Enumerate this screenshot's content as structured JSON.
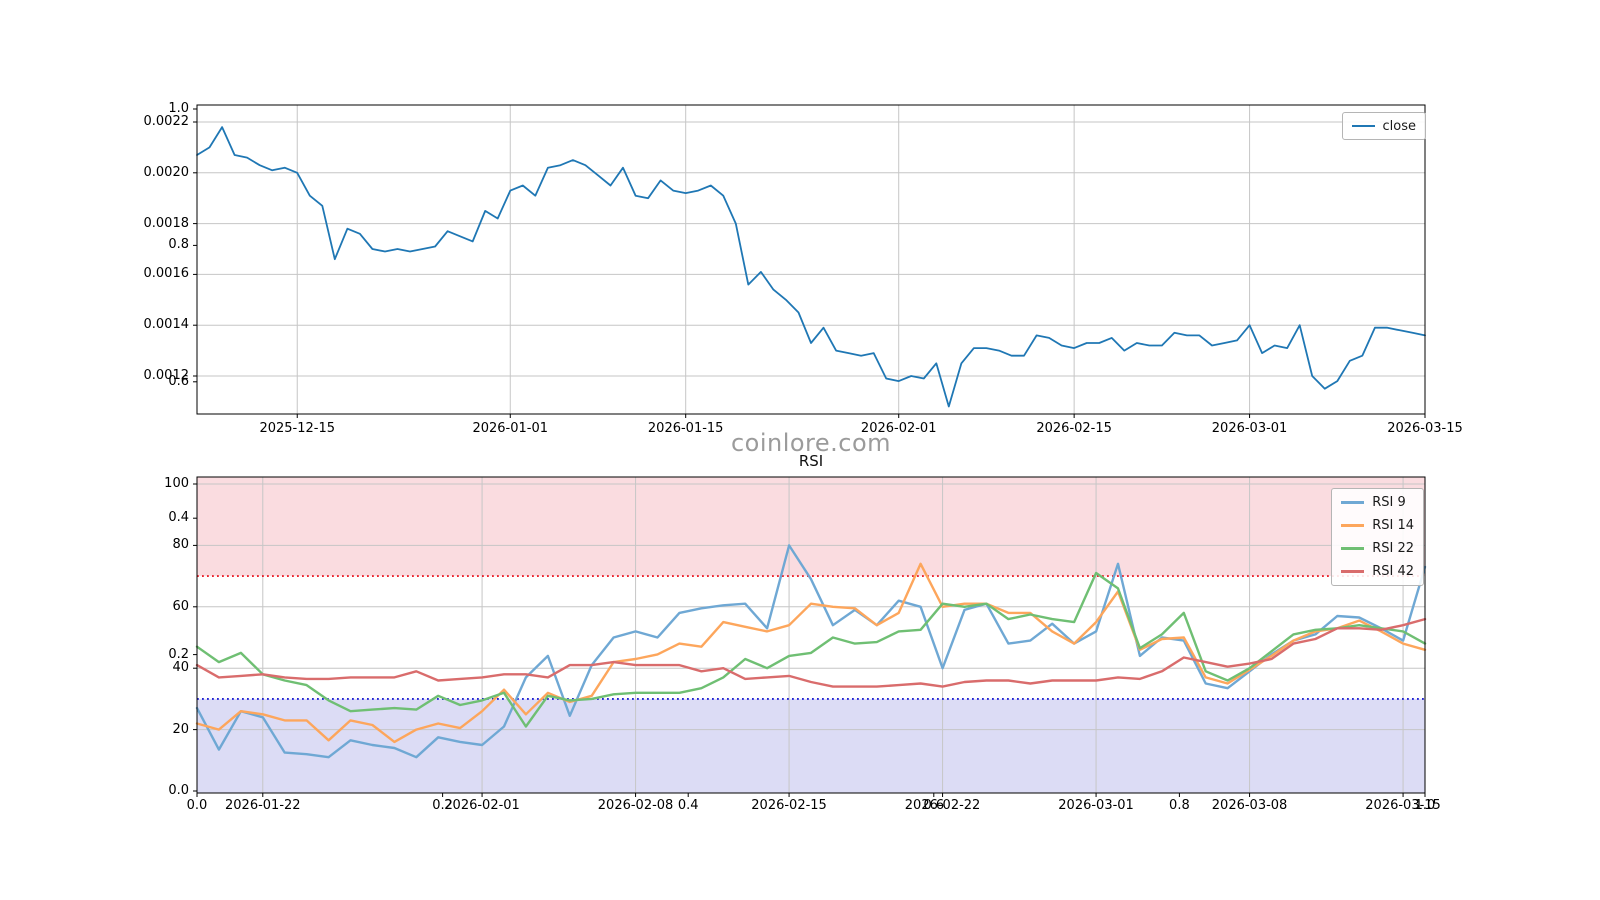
{
  "watermark": "coinlore.com",
  "overlay_axis": {
    "y_labels": [
      "1.0",
      "0.8",
      "0.6",
      "0.4",
      "0.2",
      "0.0"
    ],
    "x_labels": [
      "0.0",
      "0.2",
      "0.4",
      "0.6",
      "0.8",
      "1.0"
    ]
  },
  "chart_data": [
    {
      "type": "line",
      "title": "",
      "legend_position": "upper right",
      "grid": true,
      "ylim": [
        0.00105,
        0.00227
      ],
      "y_ticks": [
        {
          "label": "0.0022",
          "value": 0.0022
        },
        {
          "label": "0.0020",
          "value": 0.002
        },
        {
          "label": "0.0018",
          "value": 0.0018
        },
        {
          "label": "0.0016",
          "value": 0.0016
        },
        {
          "label": "0.0014",
          "value": 0.0014
        },
        {
          "label": "0.0012",
          "value": 0.0012
        }
      ],
      "x_ticks": [
        {
          "label": "2025-12-15",
          "index": 8
        },
        {
          "label": "2026-01-01",
          "index": 25
        },
        {
          "label": "2026-01-15",
          "index": 39
        },
        {
          "label": "2026-02-01",
          "index": 56
        },
        {
          "label": "2026-02-15",
          "index": 70
        },
        {
          "label": "2026-03-01",
          "index": 84
        },
        {
          "label": "2026-03-15",
          "index": 98
        }
      ],
      "series": [
        {
          "name": "close",
          "color": "#1f77b4",
          "width": 1.8,
          "values": [
            0.00207,
            0.0021,
            0.00218,
            0.00207,
            0.00206,
            0.00203,
            0.00201,
            0.00202,
            0.002,
            0.00191,
            0.00187,
            0.00166,
            0.00178,
            0.00176,
            0.0017,
            0.00169,
            0.0017,
            0.00169,
            0.0017,
            0.00171,
            0.00177,
            0.00175,
            0.00173,
            0.00185,
            0.00182,
            0.00193,
            0.00195,
            0.00191,
            0.00202,
            0.00203,
            0.00205,
            0.00203,
            0.00199,
            0.00195,
            0.00202,
            0.00191,
            0.0019,
            0.00197,
            0.00193,
            0.00192,
            0.00193,
            0.00195,
            0.00191,
            0.0018,
            0.00156,
            0.00161,
            0.00154,
            0.0015,
            0.00145,
            0.00133,
            0.00139,
            0.0013,
            0.00129,
            0.00128,
            0.00129,
            0.00119,
            0.00118,
            0.0012,
            0.00119,
            0.00125,
            0.00108,
            0.00125,
            0.00131,
            0.00131,
            0.0013,
            0.00128,
            0.00128,
            0.00136,
            0.00135,
            0.00132,
            0.00131,
            0.00133,
            0.00133,
            0.00135,
            0.0013,
            0.00133,
            0.00132,
            0.00132,
            0.00137,
            0.00136,
            0.00136,
            0.00132,
            0.00133,
            0.00134,
            0.0014,
            0.00129,
            0.00132,
            0.00131,
            0.0014,
            0.0012,
            0.00115,
            0.00118,
            0.00126,
            0.00128,
            0.00139,
            0.00139,
            0.00138,
            0.00137,
            0.00136
          ]
        }
      ]
    },
    {
      "type": "line",
      "title": "RSI",
      "legend_position": "upper right",
      "grid": true,
      "ylim": [
        0,
        103
      ],
      "overbought": 70,
      "oversold": 30,
      "overbought_fill": "#fadce0",
      "oversold_fill": "#dcdcf5",
      "overbought_line_color": "#e8000d",
      "oversold_line_color": "#0000cd",
      "y_ticks": [
        {
          "label": "100",
          "value": 100
        },
        {
          "label": "80",
          "value": 80
        },
        {
          "label": "60",
          "value": 60
        },
        {
          "label": "40",
          "value": 40
        },
        {
          "label": "20",
          "value": 20
        }
      ],
      "x_ticks": [
        {
          "label": "2026-01-22",
          "index": 3
        },
        {
          "label": "2026-02-01",
          "index": 13
        },
        {
          "label": "2026-02-08",
          "index": 20
        },
        {
          "label": "2026-02-15",
          "index": 27
        },
        {
          "label": "2026-02-22",
          "index": 34
        },
        {
          "label": "2026-03-01",
          "index": 41
        },
        {
          "label": "2026-03-08",
          "index": 48
        },
        {
          "label": "2026-03-15",
          "index": 55
        }
      ],
      "series": [
        {
          "name": "RSI 9",
          "color": "#6fa8d4",
          "width": 2.4,
          "values": [
            27,
            13.5,
            26,
            24,
            12.5,
            12,
            11,
            16.5,
            15,
            14,
            11,
            17.5,
            16,
            15,
            21,
            37,
            44,
            24.5,
            41,
            50,
            52,
            50,
            58,
            59.5,
            60.5,
            61,
            53,
            80,
            69,
            54,
            59,
            54,
            62,
            60,
            40,
            59,
            61,
            48,
            49,
            54.5,
            48,
            52,
            74,
            44,
            50,
            49,
            35,
            33.5,
            39,
            44.5,
            49,
            51,
            57,
            56.5,
            53,
            49,
            73
          ]
        },
        {
          "name": "RSI 14",
          "color": "#fda65c",
          "width": 2.4,
          "values": [
            22,
            20,
            26,
            25,
            23,
            23,
            16.5,
            23,
            21.5,
            16,
            20,
            22,
            20.5,
            26,
            33,
            25,
            32,
            29,
            31,
            42,
            43,
            44.5,
            48,
            47,
            55,
            53.5,
            52,
            54,
            61,
            60,
            59.5,
            54,
            58,
            74,
            60,
            61,
            61,
            58,
            58,
            52,
            48,
            55,
            65,
            46,
            49.5,
            50,
            37,
            35,
            39.5,
            44,
            49,
            52,
            53,
            55.5,
            52,
            48,
            46
          ]
        },
        {
          "name": "RSI 22",
          "color": "#6fbf73",
          "width": 2.4,
          "values": [
            47,
            42,
            45,
            38,
            36,
            34.5,
            29.5,
            26,
            26.5,
            27,
            26.5,
            31,
            28,
            29.5,
            32,
            21,
            31,
            29.5,
            30,
            31.5,
            32,
            32,
            32,
            33.5,
            37,
            43,
            40,
            44,
            45,
            50,
            48,
            48.5,
            52,
            52.5,
            61,
            60,
            61,
            56,
            57.5,
            56,
            55,
            71,
            66,
            46.5,
            51,
            58,
            39,
            36,
            40,
            45.5,
            51,
            52.5,
            53,
            54,
            53,
            52,
            48
          ]
        },
        {
          "name": "RSI 42",
          "color": "#d96c6c",
          "width": 2.4,
          "values": [
            41,
            37,
            37.5,
            38,
            37,
            36.5,
            36.5,
            37,
            37,
            37,
            39,
            36,
            36.5,
            37,
            38,
            38,
            37,
            41,
            41,
            42,
            41,
            41,
            41,
            39,
            40,
            36.5,
            37,
            37.5,
            35.5,
            34,
            34,
            34,
            34.5,
            35,
            34,
            35.5,
            36,
            36,
            35,
            36,
            36,
            36,
            37,
            36.5,
            39,
            43.5,
            42,
            40.5,
            41.5,
            43,
            48,
            49.5,
            53,
            53,
            52.5,
            54,
            56
          ]
        }
      ]
    }
  ]
}
